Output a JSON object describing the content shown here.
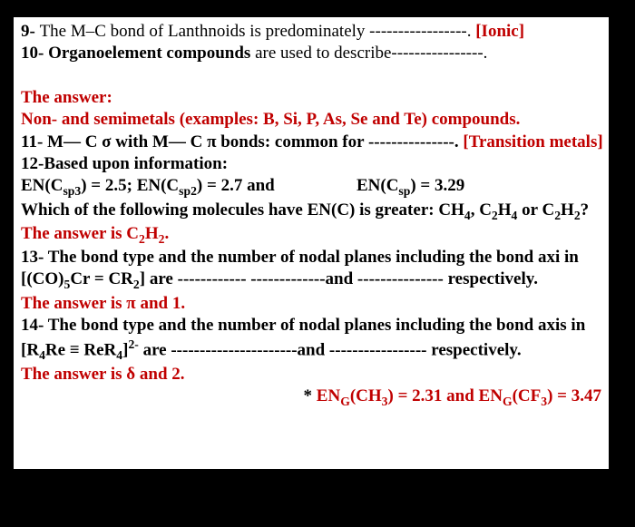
{
  "l1a": "9- ",
  "l1b": "The M–C bond of Lanthnoids is predominately -----------------. ",
  "l1c": "[Ionic]",
  "l2": "10- Organoelement compounds",
  "l2b": " are used to describe----------------.",
  "l4": "The answer:",
  "l5": "Non- and semimetals (examples: B, Si, P, As, Se and Te) compounds.",
  "l6a": "11- M— C σ with M— C π bonds: common for ---------------. ",
  "l6b": "[Transition metals]",
  "l7": "12-Based upon information:",
  "l8a": "EN(C",
  "l8a2": ") = 2.5; EN(C",
  "l8a3": ") = 2.7 and",
  "l8gap": "                   ",
  "l8b": "EN(C",
  "l8b2": ") = 3.29",
  "sp3": "sp3",
  "sp2": "sp2",
  "sp": "sp",
  "l9a": "Which of the following molecules have EN(C) is greater: CH",
  "l9b": ", C",
  "l9c": "H",
  "l9d": " or C",
  "l9e": "H",
  "l9f": "?",
  "four": "4",
  "two": "2",
  "l10a": "The answer is C",
  "l10b": "H",
  "l10c": ".",
  "l11": " 13- The bond type and the number of nodal planes including the bond axi in",
  "l12a": "[(CO)",
  "l12b": "Cr = CR",
  "l12c": "] are ------------  -------------and --------------- respectively.",
  "five": "5",
  "l13": "The answer is π and 1.",
  "l14": "14- The bond type and the number of nodal planes including the bond axis in",
  "l15a": "[R",
  "l15b": "Re ≡ ReR",
  "l15c": "]",
  "twominus": "2-",
  "l15d": " are ----------------------and ----------------- respectively.",
  "l16": "The answer is δ and 2.",
  "fnstar": "* ",
  "fn1": "EN",
  "fnG": "G",
  "fn2": "(CH",
  "fn3": ") = 2.31 and EN",
  "fn4": "(CF",
  "fn5": ") = 3.47",
  "three": "3"
}
